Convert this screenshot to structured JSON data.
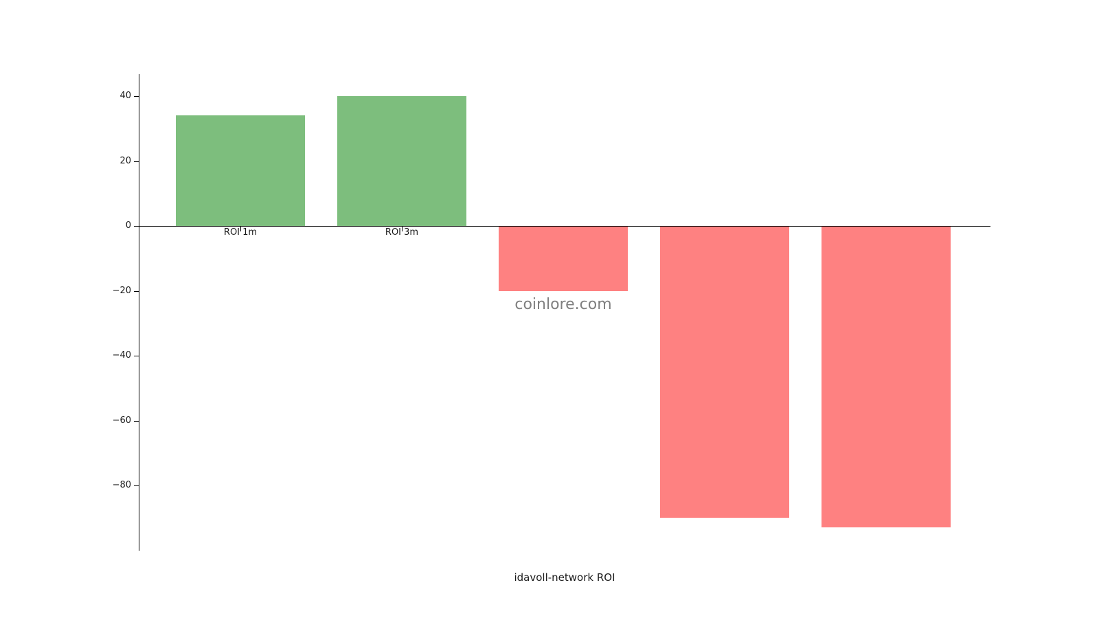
{
  "chart_data": {
    "type": "bar",
    "title": "idavoll-network ROI",
    "categories": [
      "ROI 1m",
      "ROI 3m",
      "",
      "",
      ""
    ],
    "values": [
      34,
      40,
      -20,
      -90,
      -93
    ],
    "positive_color": "#7dbe7d",
    "negative_color": "#fe8181",
    "xlabel": "",
    "ylabel": "",
    "ylim": [
      -100,
      46.8
    ],
    "y_ticks": [
      40,
      20,
      0,
      -20,
      -40,
      -60,
      -80
    ],
    "grid": false,
    "legend": false,
    "note": "Category tick labels of the three negative bars are hidden behind the red bars; only the first two labels are visible."
  },
  "watermark": {
    "text": "coinlore.com",
    "color": "#7f7f7f"
  }
}
